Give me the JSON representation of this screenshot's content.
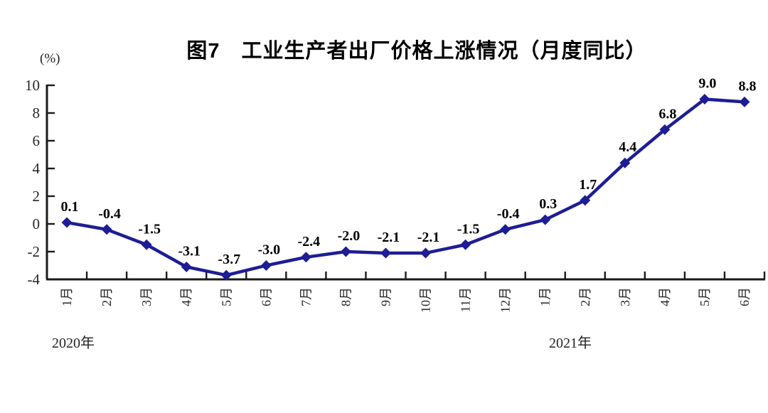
{
  "title": "图7　工业生产者出厂价格上涨情况（月度同比）",
  "chart_data": {
    "type": "line",
    "title": "图7　工业生产者出厂价格上涨情况（月度同比）",
    "ylabel": "(%)",
    "xlabel": "",
    "categories": [
      "1月",
      "2月",
      "3月",
      "4月",
      "5月",
      "6月",
      "7月",
      "8月",
      "9月",
      "10月",
      "11月",
      "12月",
      "1月",
      "2月",
      "3月",
      "4月",
      "5月",
      "6月"
    ],
    "values": [
      0.1,
      -0.4,
      -1.5,
      -3.1,
      -3.7,
      -3.0,
      -2.4,
      -2.0,
      -2.1,
      -2.1,
      -1.5,
      -0.4,
      0.3,
      1.7,
      4.4,
      6.8,
      9.0,
      8.8
    ],
    "labels": [
      "0.1",
      "-0.4",
      "-1.5",
      "-3.1",
      "-3.7",
      "-3.0",
      "-2.4",
      "-2.0",
      "-2.1",
      "-2.1",
      "-1.5",
      "-0.4",
      "0.3",
      "1.7",
      "4.4",
      "6.8",
      "9.0",
      "8.8"
    ],
    "yticks": [
      10,
      8,
      6,
      4,
      2,
      0,
      -2,
      -4
    ],
    "ylim": [
      -4,
      10
    ],
    "year_groups": [
      {
        "label": "2020年",
        "months": 12
      },
      {
        "label": "2021年",
        "months": 6
      }
    ],
    "line_color": "#1d1d96",
    "axis_color": "#1a1a1a",
    "marker": "diamond",
    "grid": false,
    "legend": "none"
  }
}
